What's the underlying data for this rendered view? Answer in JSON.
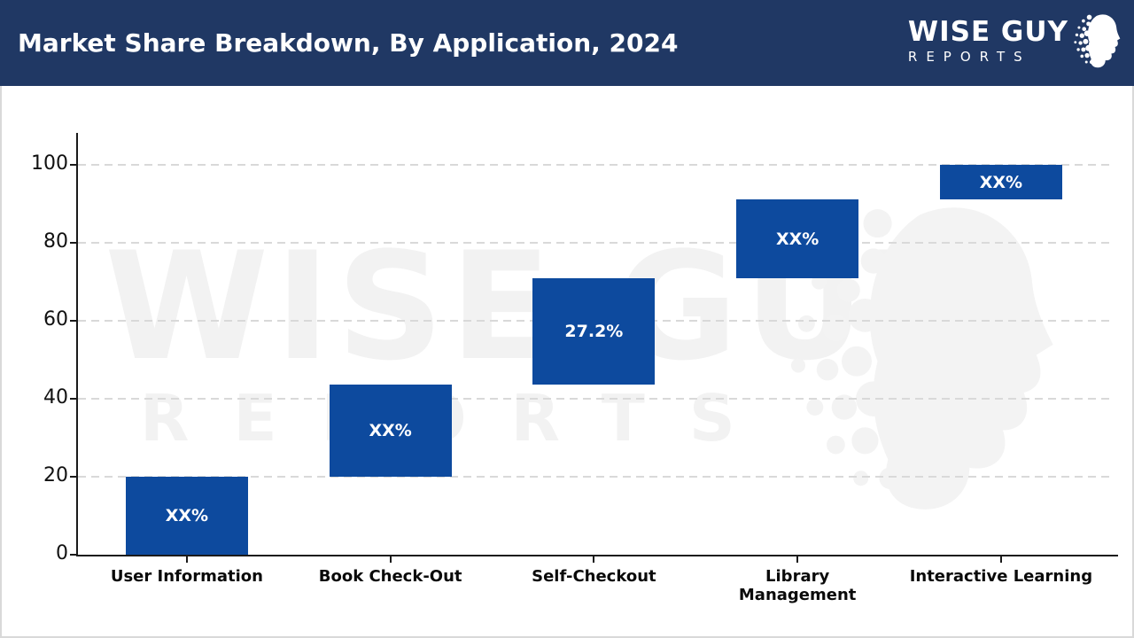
{
  "header": {
    "title": "Market Share Breakdown, By Application, 2024",
    "logo": {
      "line1": "WISE GUY",
      "line2": "REPORTS"
    }
  },
  "watermark": {
    "line1": "WISE GUY",
    "line2": "REPORTS"
  },
  "colors": {
    "header_bg": "#203864",
    "bar": "#0d4a9e",
    "bar_label": "#ffffff",
    "gridline": "#d9d9d9",
    "axis": "#1a1a1a",
    "watermark": "#f2f2f2"
  },
  "chart_data": {
    "type": "bar",
    "variant": "floating-waterfall",
    "title": "Market Share Breakdown, By Application, 2024",
    "categories": [
      "User Information",
      "Book Check-Out",
      "Self-Checkout",
      "Library Management",
      "Interactive Learning"
    ],
    "bar_labels": [
      "XX%",
      "XX%",
      "27.2%",
      "XX%",
      "XX%"
    ],
    "bar_start": [
      0,
      20,
      43.7,
      70.9,
      91.1
    ],
    "bar_end": [
      20,
      43.7,
      70.9,
      91.1,
      100
    ],
    "known_values": {
      "Self-Checkout": 27.2
    },
    "masked_values_placeholder": "XX%",
    "yticks": [
      0,
      20,
      40,
      60,
      80,
      100
    ],
    "ylim": [
      0,
      105
    ],
    "xlabel": "",
    "ylabel": "",
    "grid": "horizontal-dashed",
    "legend": "none"
  }
}
